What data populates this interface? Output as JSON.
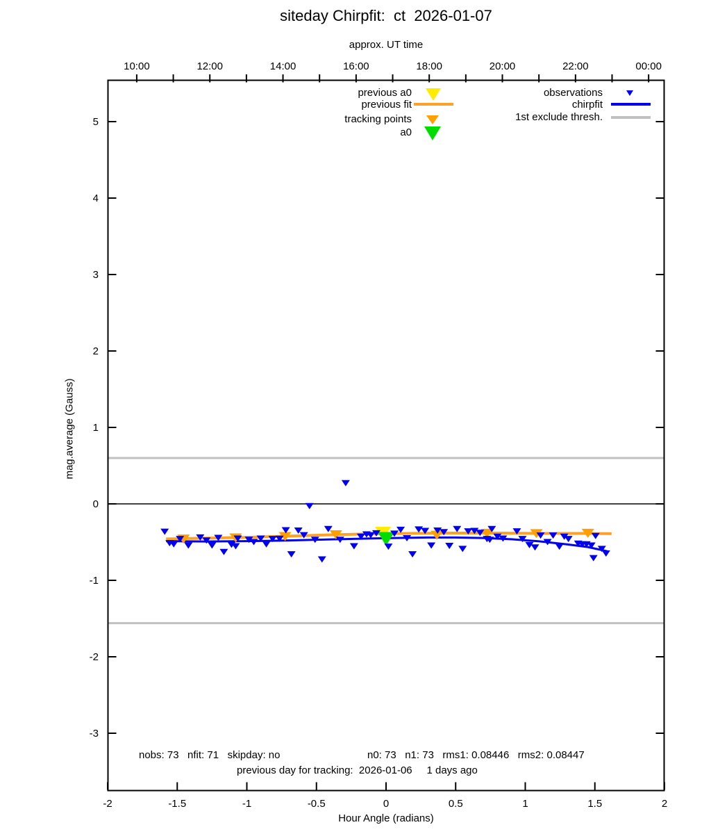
{
  "page": {
    "title": "siteday Chirpfit:  ct  2026-01-07"
  },
  "colors": {
    "observations": "#0000ee",
    "chirpfit": "#0000ee",
    "previous_fit": "#ffa028",
    "tracking_points": "#ff9f00",
    "previous_a0": "#ffec00",
    "a0": "#00dc00",
    "exclude_threshold": "#c0c0c0",
    "axis": "#000000"
  },
  "legend": {
    "previous_a0": {
      "label": "previous a0"
    },
    "previous_fit": {
      "label": "previous fit"
    },
    "tracking_points": {
      "label": "tracking points"
    },
    "a0": {
      "label": "a0"
    },
    "observations": {
      "label": "observations"
    },
    "chirpfit": {
      "label": "chirpfit"
    },
    "exclude_thresh": {
      "label": "1st exclude thresh."
    }
  },
  "stats": {
    "line1_left": "nobs: 73   nfit: 71   skipday: no",
    "line1_right": "n0: 73   n1: 73   rms1: 0.08446   rms2: 0.08447",
    "line2": "previous day for tracking:  2026-01-06     1 days ago"
  },
  "chart_data": {
    "type": "scatter",
    "title": "siteday Chirpfit:  ct  2026-01-07",
    "x2label": "approx. UT time",
    "xlabel": "Hour Angle (radians)",
    "ylabel": "mag.average (Gauss)",
    "xlim": [
      -2,
      2
    ],
    "ylim": [
      -3.75,
      5.55
    ],
    "grid": false,
    "legend_position": "top-inside",
    "xticks": {
      "values": [
        -2,
        -1.5,
        -1,
        -0.5,
        0,
        0.5,
        1,
        1.5,
        2
      ],
      "labels": [
        "-2",
        "-1.5",
        "-1",
        "-0.5",
        "0",
        "0.5",
        "1",
        "1.5",
        "2"
      ]
    },
    "yticks": {
      "values": [
        5,
        4,
        3,
        2,
        1,
        0,
        -1,
        -2,
        -3
      ],
      "labels": [
        "5",
        "4",
        "3",
        "2",
        "1",
        "0",
        "-1",
        "-2",
        "-3"
      ]
    },
    "x2ticks": {
      "labels": [
        "10:00",
        "12:00",
        "14:00",
        "16:00",
        "18:00",
        "20:00",
        "22:00",
        "00:00"
      ],
      "first_ha": -1.791,
      "step_ha": 0.5253,
      "minor_per_major": 1
    },
    "series": {
      "exclude_thresholds": [
        0.6,
        -1.56
      ],
      "zero_line": 0,
      "observations": [
        [
          -1.59,
          -0.365
        ],
        [
          -1.555,
          -0.515
        ],
        [
          -1.525,
          -0.53
        ],
        [
          -1.48,
          -0.46
        ],
        [
          -1.42,
          -0.545
        ],
        [
          -1.335,
          -0.44
        ],
        [
          -1.29,
          -0.48
        ],
        [
          -1.25,
          -0.545
        ],
        [
          -1.205,
          -0.445
        ],
        [
          -1.165,
          -0.63
        ],
        [
          -1.11,
          -0.535
        ],
        [
          -1.08,
          -0.555
        ],
        [
          -1.065,
          -0.455
        ],
        [
          -0.985,
          -0.47
        ],
        [
          -0.95,
          -0.5
        ],
        [
          -0.9,
          -0.455
        ],
        [
          -0.86,
          -0.53
        ],
        [
          -0.815,
          -0.46
        ],
        [
          -0.765,
          -0.457
        ],
        [
          -0.72,
          -0.345
        ],
        [
          -0.68,
          -0.66
        ],
        [
          -0.63,
          -0.35
        ],
        [
          -0.59,
          -0.41
        ],
        [
          -0.55,
          -0.03
        ],
        [
          -0.51,
          -0.47
        ],
        [
          -0.46,
          -0.727
        ],
        [
          -0.415,
          -0.33
        ],
        [
          -0.33,
          -0.47
        ],
        [
          -0.29,
          0.27
        ],
        [
          -0.23,
          -0.555
        ],
        [
          -0.18,
          -0.43
        ],
        [
          -0.14,
          -0.4
        ],
        [
          -0.11,
          -0.41
        ],
        [
          -0.07,
          -0.385
        ],
        [
          0.017,
          -0.56
        ],
        [
          0.06,
          -0.39
        ],
        [
          0.105,
          -0.34
        ],
        [
          0.15,
          -0.45
        ],
        [
          0.19,
          -0.66
        ],
        [
          0.235,
          -0.335
        ],
        [
          0.28,
          -0.355
        ],
        [
          0.325,
          -0.545
        ],
        [
          0.37,
          -0.35
        ],
        [
          0.415,
          -0.37
        ],
        [
          0.455,
          -0.55
        ],
        [
          0.51,
          -0.33
        ],
        [
          0.55,
          -0.59
        ],
        [
          0.59,
          -0.36
        ],
        [
          0.635,
          -0.355
        ],
        [
          0.675,
          -0.38
        ],
        [
          0.725,
          -0.46
        ],
        [
          0.745,
          -0.47
        ],
        [
          0.76,
          -0.33
        ],
        [
          0.8,
          -0.43
        ],
        [
          0.84,
          -0.455
        ],
        [
          0.94,
          -0.36
        ],
        [
          0.98,
          -0.46
        ],
        [
          1.03,
          -0.54
        ],
        [
          1.07,
          -0.57
        ],
        [
          1.11,
          -0.415
        ],
        [
          1.16,
          -0.5
        ],
        [
          1.2,
          -0.415
        ],
        [
          1.245,
          -0.56
        ],
        [
          1.28,
          -0.43
        ],
        [
          1.31,
          -0.46
        ],
        [
          1.38,
          -0.52
        ],
        [
          1.41,
          -0.53
        ],
        [
          1.44,
          -0.53
        ],
        [
          1.475,
          -0.545
        ],
        [
          1.49,
          -0.71
        ],
        [
          1.505,
          -0.42
        ],
        [
          1.55,
          -0.59
        ],
        [
          1.58,
          -0.65
        ]
      ],
      "chirpfit": [
        [
          -1.58,
          -0.487
        ],
        [
          -1.3,
          -0.492
        ],
        [
          -1.0,
          -0.488
        ],
        [
          -0.7,
          -0.478
        ],
        [
          -0.4,
          -0.465
        ],
        [
          -0.1,
          -0.452
        ],
        [
          0.1,
          -0.445
        ],
        [
          0.3,
          -0.44
        ],
        [
          0.5,
          -0.44
        ],
        [
          0.7,
          -0.447
        ],
        [
          0.9,
          -0.462
        ],
        [
          1.1,
          -0.49
        ],
        [
          1.3,
          -0.53
        ],
        [
          1.45,
          -0.565
        ],
        [
          1.59,
          -0.62
        ]
      ],
      "previous_fit": [
        [
          -1.58,
          -0.458
        ],
        [
          -1.3,
          -0.449
        ],
        [
          -1.0,
          -0.438
        ],
        [
          -0.7,
          -0.422
        ],
        [
          -0.4,
          -0.405
        ],
        [
          -0.1,
          -0.392
        ],
        [
          0.2,
          -0.385
        ],
        [
          0.5,
          -0.382
        ],
        [
          0.8,
          -0.382
        ],
        [
          1.1,
          -0.386
        ],
        [
          1.4,
          -0.386
        ],
        [
          1.62,
          -0.39
        ]
      ],
      "tracking_points": [
        [
          -1.455,
          -0.46
        ],
        [
          -1.08,
          -0.445
        ],
        [
          -0.725,
          -0.427
        ],
        [
          -0.36,
          -0.405
        ],
        [
          0.365,
          -0.41
        ],
        [
          0.725,
          -0.385
        ],
        [
          1.08,
          -0.39
        ],
        [
          1.45,
          -0.385
        ]
      ],
      "previous_a0": {
        "x": -0.022,
        "y": -0.382
      },
      "a0": {
        "x": 0.0,
        "y": -0.459
      }
    }
  }
}
